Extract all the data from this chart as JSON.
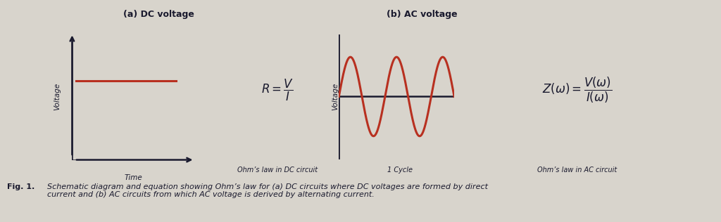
{
  "bg_color": "#d8d4cc",
  "title_a": "(a) DC voltage",
  "title_b": "(b) AC voltage",
  "title_fontsize": 9,
  "fig_caption_bold": "Fig. 1.",
  "fig_caption_rest": " Schematic diagram and equation showing Ohm’s law for (a) DC circuits where DC voltages are formed by direct\ncurrent and (b) AC circuits from which AC voltage is derived by alternating current.",
  "caption_fontsize": 8.0,
  "dc_label_voltage": "Voltage",
  "dc_label_time": "Time",
  "dc_ohm_label": "Ohm’s law in DC circuit",
  "dc_equation": "$R = \\dfrac{V}{I}$",
  "ac_label_voltage": "Voltage",
  "ac_cycle_label": "1 Cycle",
  "ac_ohm_label": "Ohm’s law in AC circuit",
  "ac_equation": "$Z(\\omega) = \\dfrac{V(\\omega)}{I(\\omega)}$",
  "line_color_dc": "#b83020",
  "line_color_ac": "#b83020",
  "axis_color": "#1a1a2e",
  "text_color": "#1a1a2e",
  "equation_fontsize": 12,
  "label_fontsize": 7.5,
  "ohm_fontsize": 7.0
}
